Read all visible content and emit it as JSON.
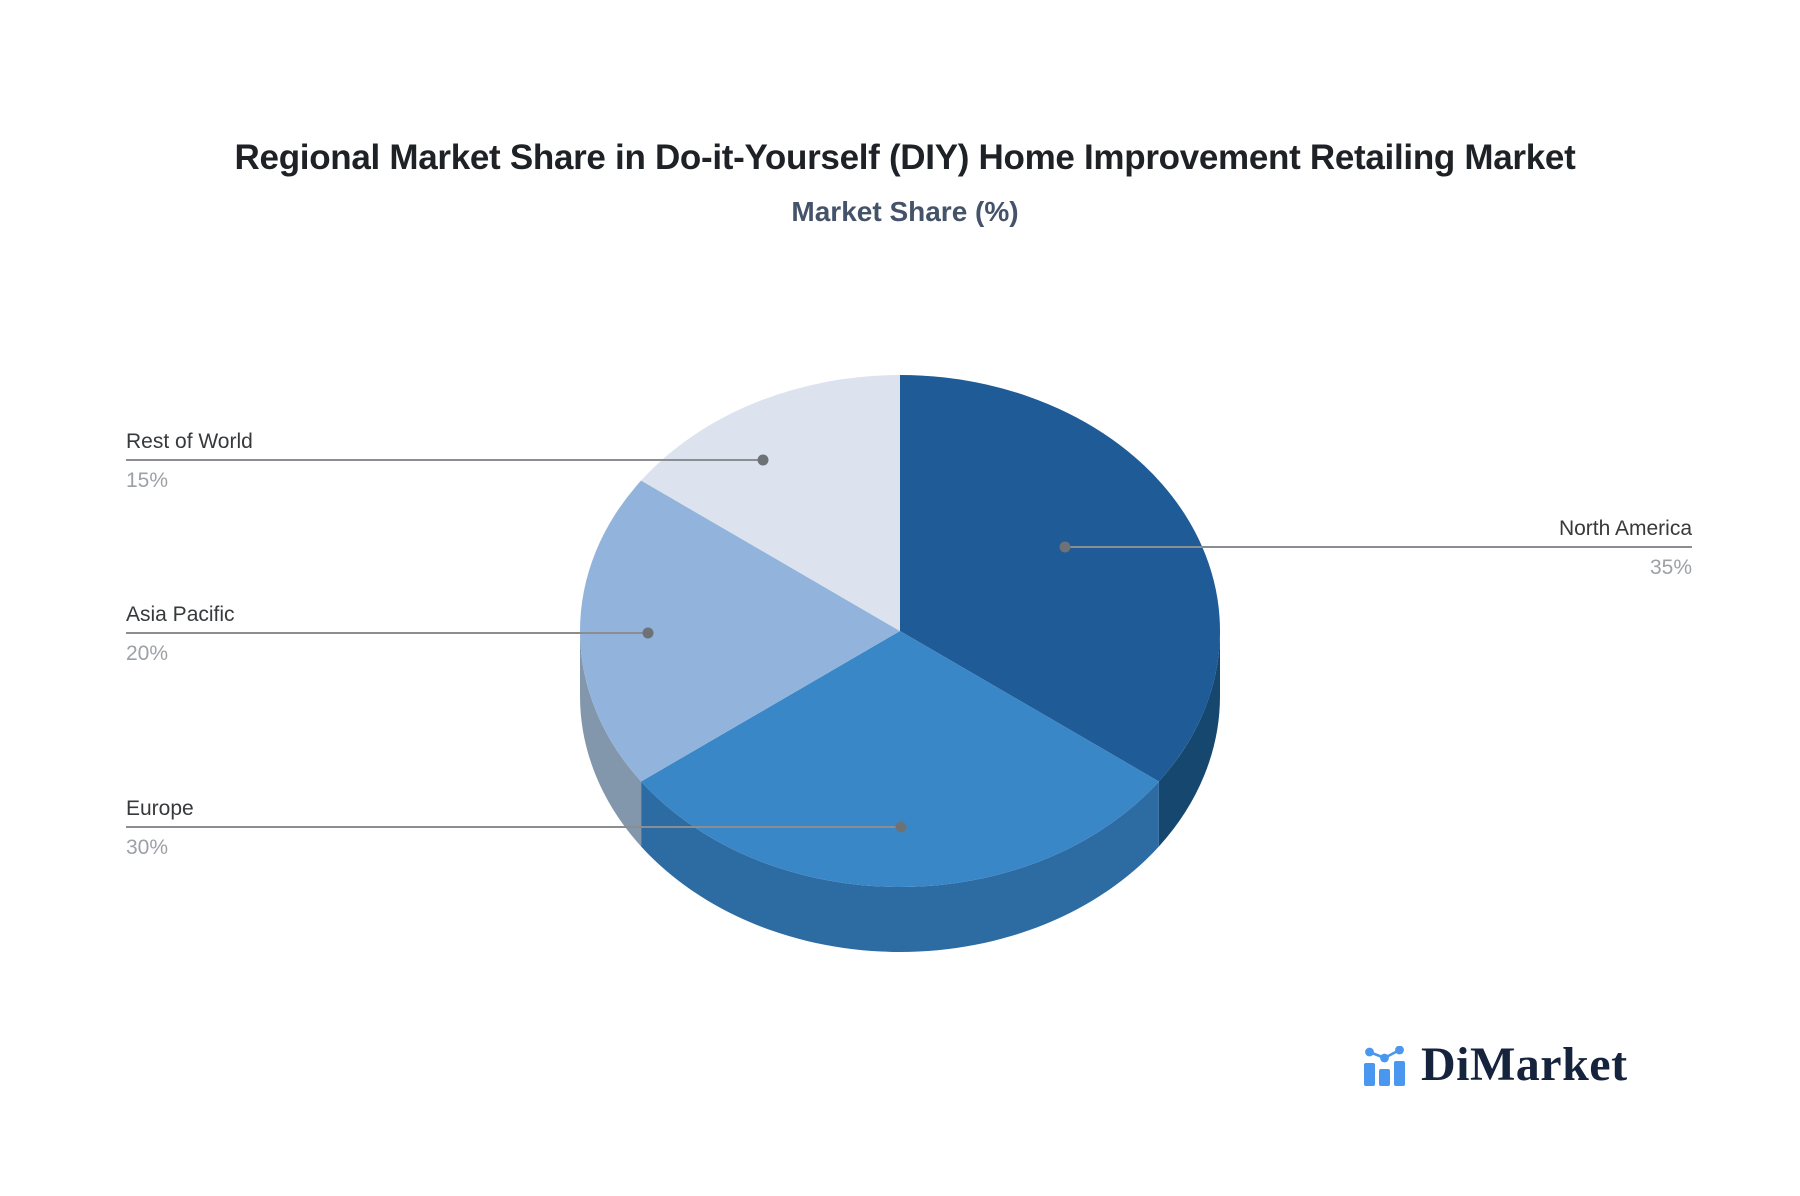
{
  "chart_data": {
    "type": "pie",
    "style": "3d",
    "title": "Regional Market Share in Do-it-Yourself (DIY) Home Improvement Retailing Market",
    "subtitle": "Market Share (%)",
    "unit": "%",
    "direction": "clockwise",
    "start_angle": "12-oclock",
    "legend_position": "callout-labels",
    "slices": [
      {
        "label": "North America",
        "value": 35,
        "display_value": "35%",
        "color": "#1e5b97",
        "side_color": "#16486f"
      },
      {
        "label": "Europe",
        "value": 30,
        "display_value": "30%",
        "color": "#3a87c8",
        "side_color": "#2d6ba3"
      },
      {
        "label": "Asia Pacific",
        "value": 20,
        "display_value": "20%",
        "color": "#92b4dc",
        "side_color": "#8296ac"
      },
      {
        "label": "Rest of World",
        "value": 15,
        "display_value": "15%",
        "color": "#dce3ee",
        "side_color": "#c3cddc"
      }
    ]
  },
  "branding": {
    "logo_text": "DiMarket",
    "logo_icon": "mini-bar-line-chart-icon",
    "logo_text_color": "#15233c",
    "logo_icon_color": "#4a97f0"
  },
  "colors": {
    "background": "#ffffff",
    "title_text": "#1e2125",
    "subtitle_text": "#44536a",
    "label_text": "#37393b",
    "value_text": "#9da1a6",
    "leader_line": "#8a8e92",
    "leader_dot": "#6d7277"
  }
}
